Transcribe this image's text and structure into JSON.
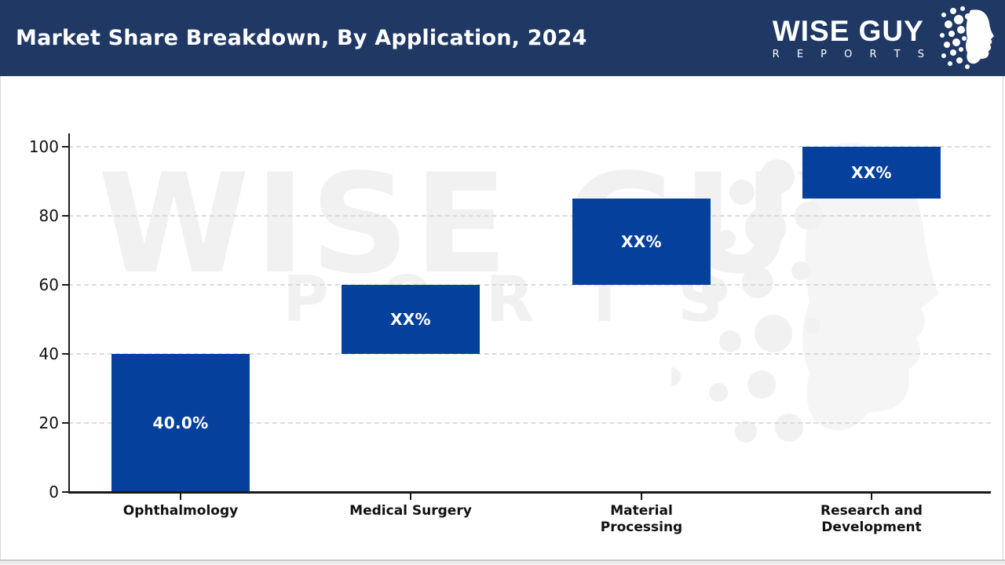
{
  "header": {
    "title": "Market Share Breakdown, By Application, 2024",
    "logo_line1": "WISE GUY",
    "logo_line2": "REPORTS"
  },
  "watermark": {
    "line1": "WISE GUY",
    "line2": "PORTS"
  },
  "colors": {
    "header_bg": "#1f3864",
    "bar": "#05419c",
    "grid": "#dcdcdc",
    "axis": "#1a1a1a",
    "watermark": "#f1f1f1"
  },
  "chart_data": {
    "type": "bar",
    "subtype": "waterfall",
    "title": "Market Share Breakdown, By Application, 2024",
    "categories": [
      "Ophthalmology",
      "Medical Surgery",
      "Material\nProcessing",
      "Research and\nDevelopment"
    ],
    "segments": [
      {
        "category": "Ophthalmology",
        "start": 0,
        "end": 40,
        "label": "40.0%"
      },
      {
        "category": "Medical Surgery",
        "start": 40,
        "end": 60,
        "label": "XX%"
      },
      {
        "category": "Material Processing",
        "start": 60,
        "end": 85,
        "label": "XX%"
      },
      {
        "category": "Research and Development",
        "start": 85,
        "end": 100,
        "label": "XX%"
      }
    ],
    "xlabel": "",
    "ylabel": "",
    "ylim": [
      0,
      100
    ],
    "yticks": [
      0,
      20,
      40,
      60,
      80,
      100
    ],
    "grid": "horizontal-dashed",
    "legend": "none",
    "bar_color": "#05419c"
  }
}
